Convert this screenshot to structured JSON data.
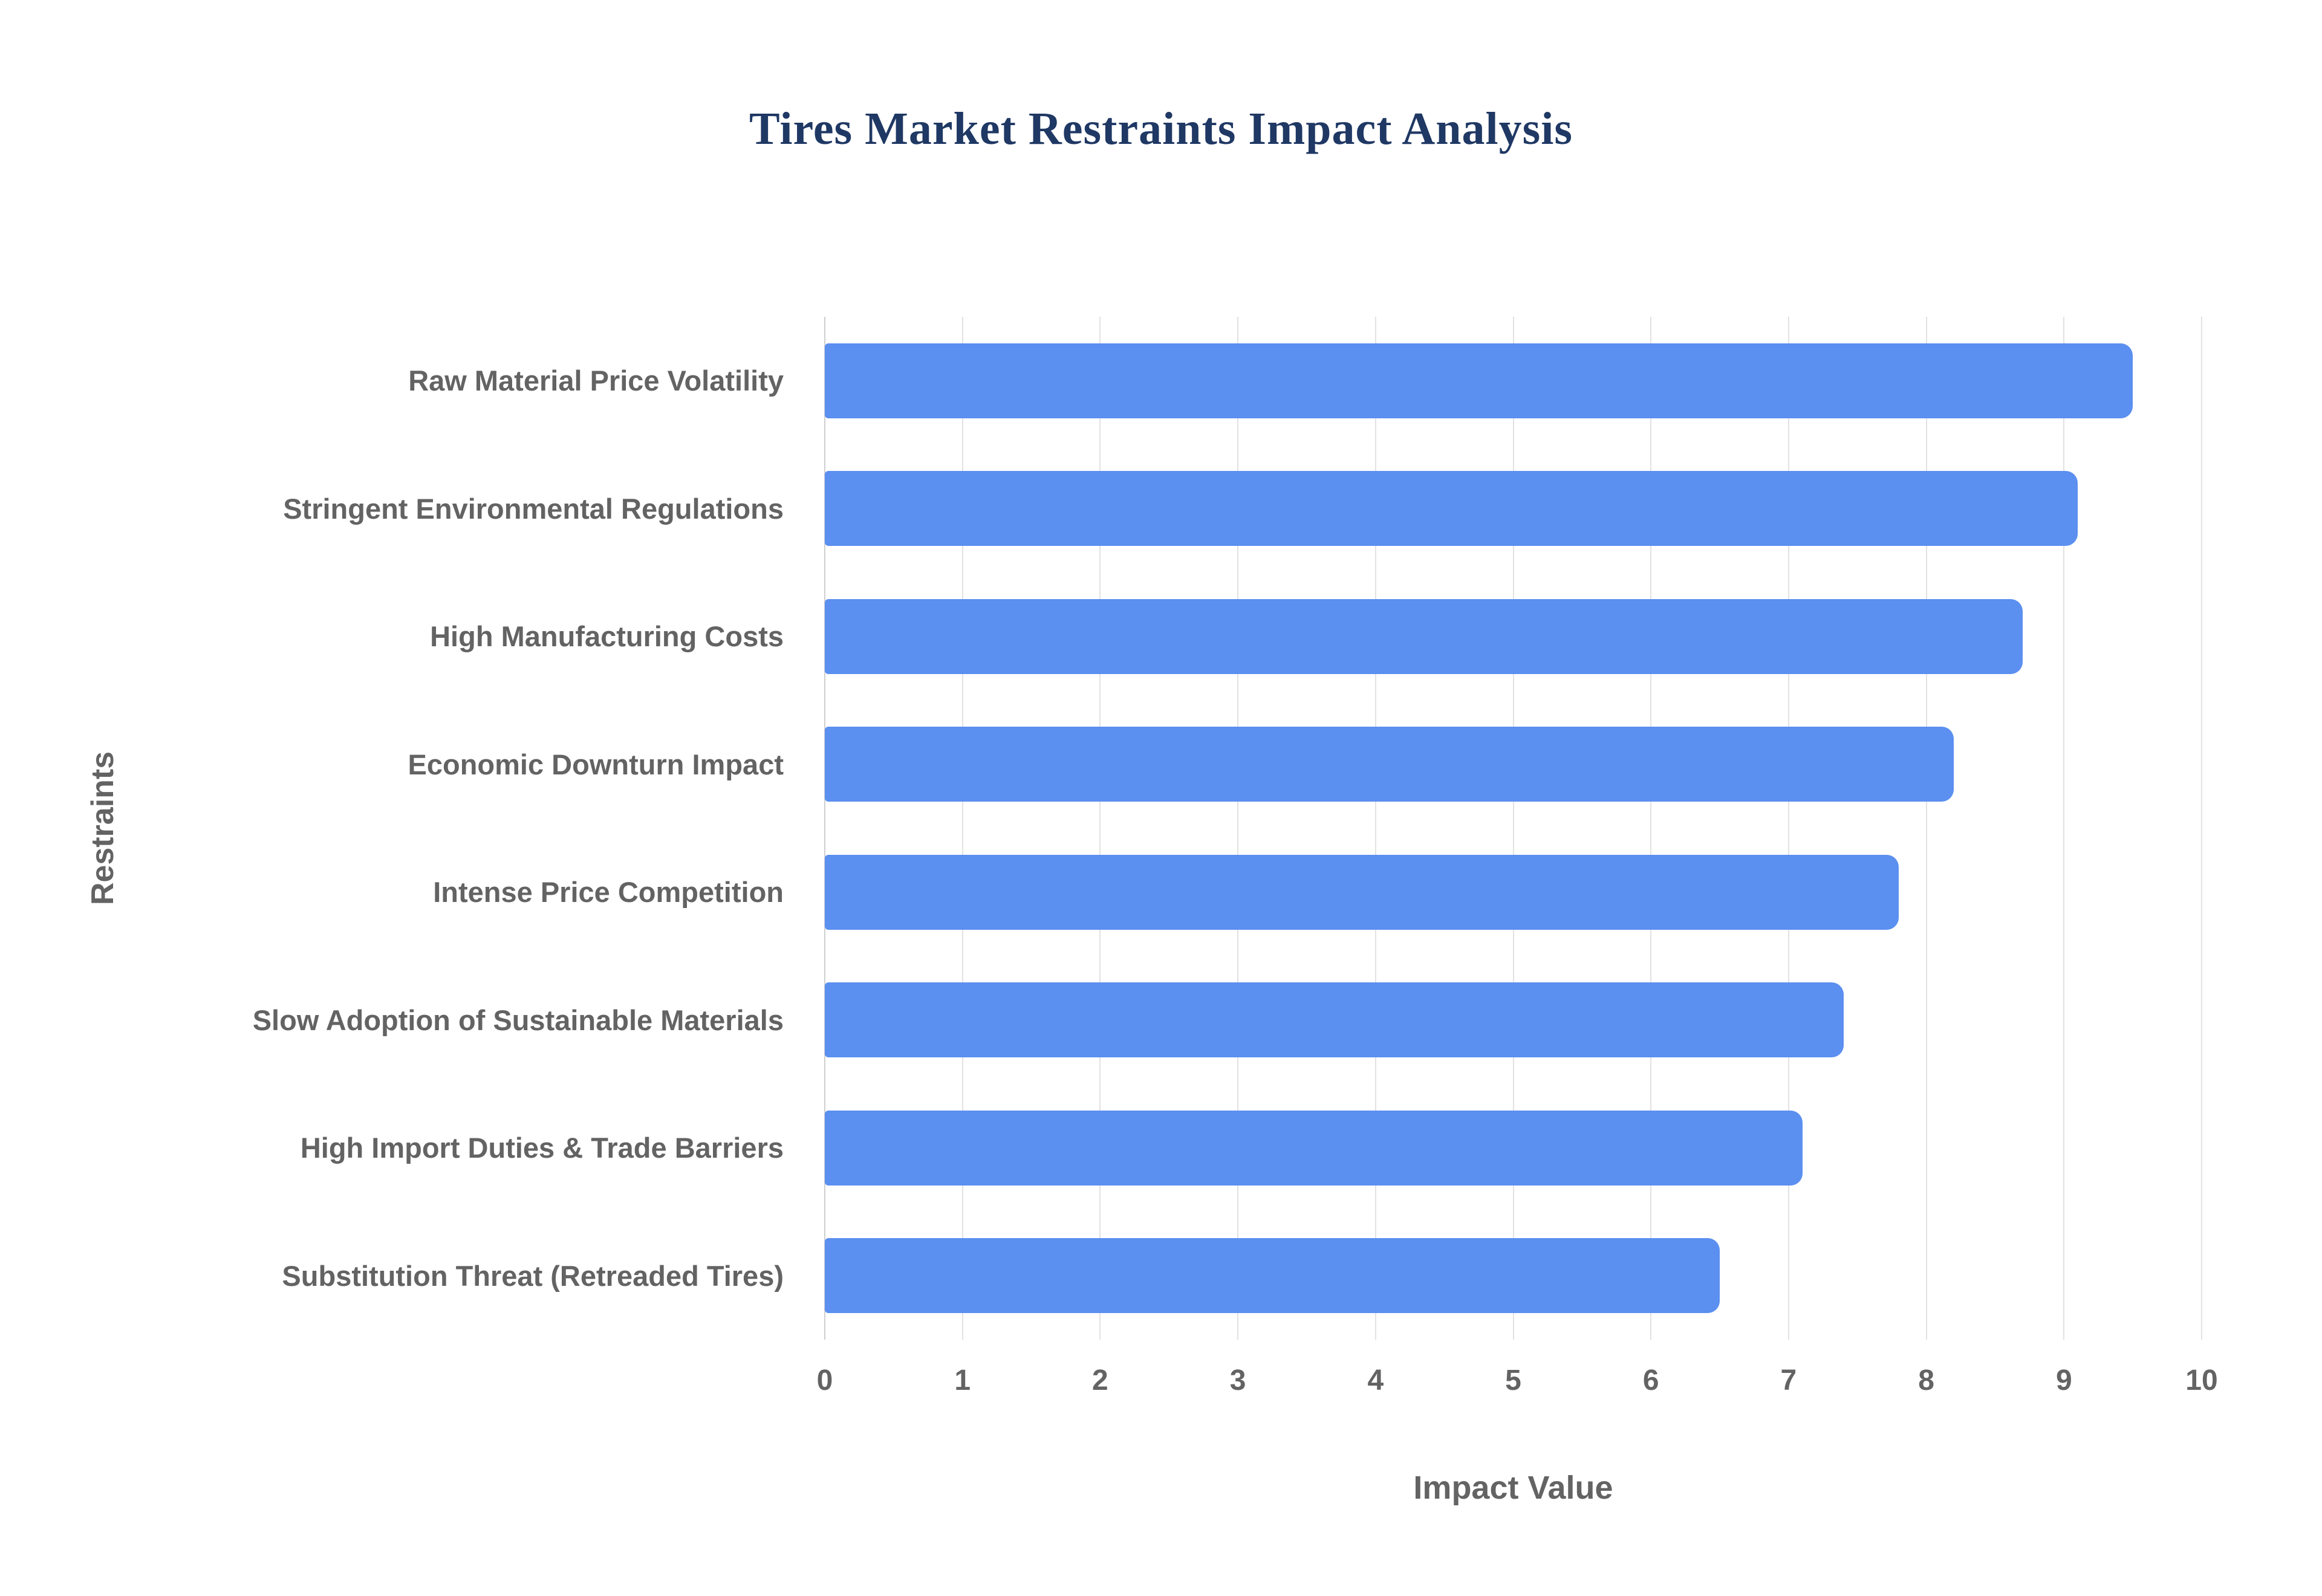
{
  "title": "Tires Market Restraints Impact Analysis",
  "colors": {
    "bar": "#5b8ff0",
    "title": "#1f3864",
    "label": "#636363",
    "grid": "#e2e2e2"
  },
  "chart_data": {
    "type": "bar",
    "orientation": "horizontal",
    "title": "Tires Market Restraints Impact Analysis",
    "xlabel": "Impact Value",
    "ylabel": "Restraints",
    "categories": [
      "Raw Material Price Volatility",
      "Stringent Environmental Regulations",
      "High Manufacturing Costs",
      "Economic Downturn Impact",
      "Intense Price Competition",
      "Slow Adoption of Sustainable Materials",
      "High Import Duties & Trade Barriers",
      "Substitution Threat (Retreaded Tires)"
    ],
    "values": [
      9.5,
      9.1,
      8.7,
      8.2,
      7.8,
      7.4,
      7.1,
      6.5
    ],
    "xlim": [
      0,
      10
    ],
    "xticks": [
      0,
      1,
      2,
      3,
      4,
      5,
      6,
      7,
      8,
      9,
      10
    ],
    "grid": true,
    "legend": false
  }
}
